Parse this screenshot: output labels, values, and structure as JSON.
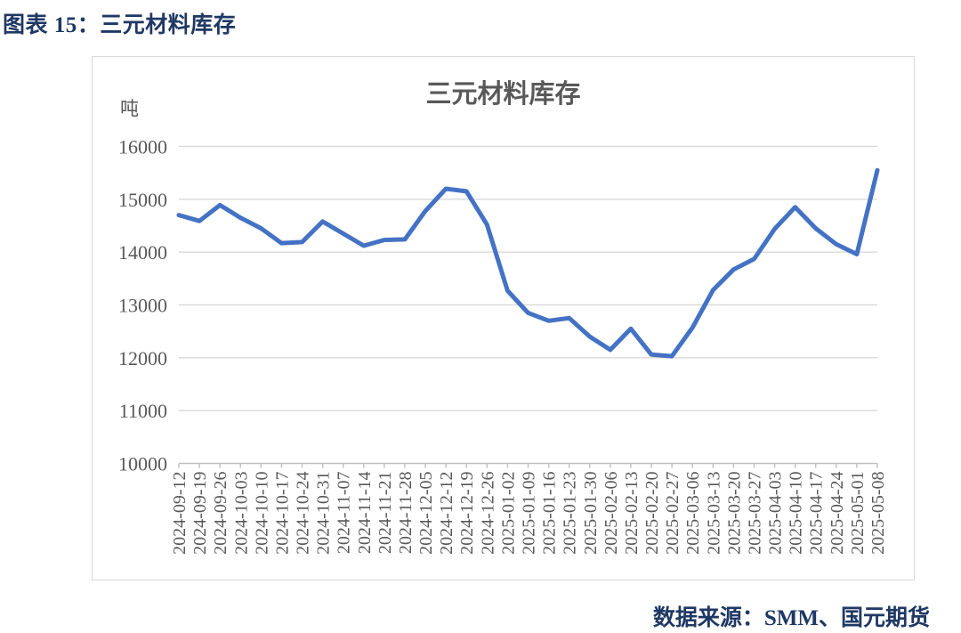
{
  "page": {
    "header": "图表 15：三元材料库存",
    "source": "数据来源：SMM、国元期货"
  },
  "chart_data": {
    "type": "line",
    "title": "三元材料库存",
    "unit_label": "吨",
    "categories": [
      "2024-09-12",
      "2024-09-19",
      "2024-09-26",
      "2024-10-03",
      "2024-10-10",
      "2024-10-17",
      "2024-10-24",
      "2024-10-31",
      "2024-11-07",
      "2024-11-14",
      "2024-11-21",
      "2024-11-28",
      "2024-12-05",
      "2024-12-12",
      "2024-12-19",
      "2024-12-26",
      "2025-01-02",
      "2025-01-09",
      "2025-01-16",
      "2025-01-23",
      "2025-01-30",
      "2025-02-06",
      "2025-02-13",
      "2025-02-20",
      "2025-02-27",
      "2025-03-06",
      "2025-03-13",
      "2025-03-20",
      "2025-03-27",
      "2025-04-03",
      "2025-04-10",
      "2025-04-17",
      "2025-04-24",
      "2025-05-01",
      "2025-05-08"
    ],
    "series": [
      {
        "name": "三元材料库存",
        "values": [
          14700,
          14590,
          14890,
          14650,
          14450,
          14170,
          14190,
          14580,
          14350,
          14120,
          14230,
          14240,
          14780,
          15200,
          15150,
          14520,
          13270,
          12850,
          12700,
          12750,
          12400,
          12150,
          12550,
          12060,
          12030,
          12570,
          13280,
          13670,
          13870,
          14440,
          14850,
          14450,
          14150,
          13960,
          15550
        ]
      }
    ],
    "ylim": [
      10000,
      16000
    ],
    "ytick_step": 1000,
    "ytick_labels": [
      "10000",
      "11000",
      "12000",
      "13000",
      "14000",
      "15000",
      "16000"
    ],
    "grid": "horizontal",
    "legend": "none",
    "line_color": "#4472C4",
    "grid_color": "#d9d9d9",
    "axis_color": "#bfbfbf",
    "text_color": "#595959"
  }
}
